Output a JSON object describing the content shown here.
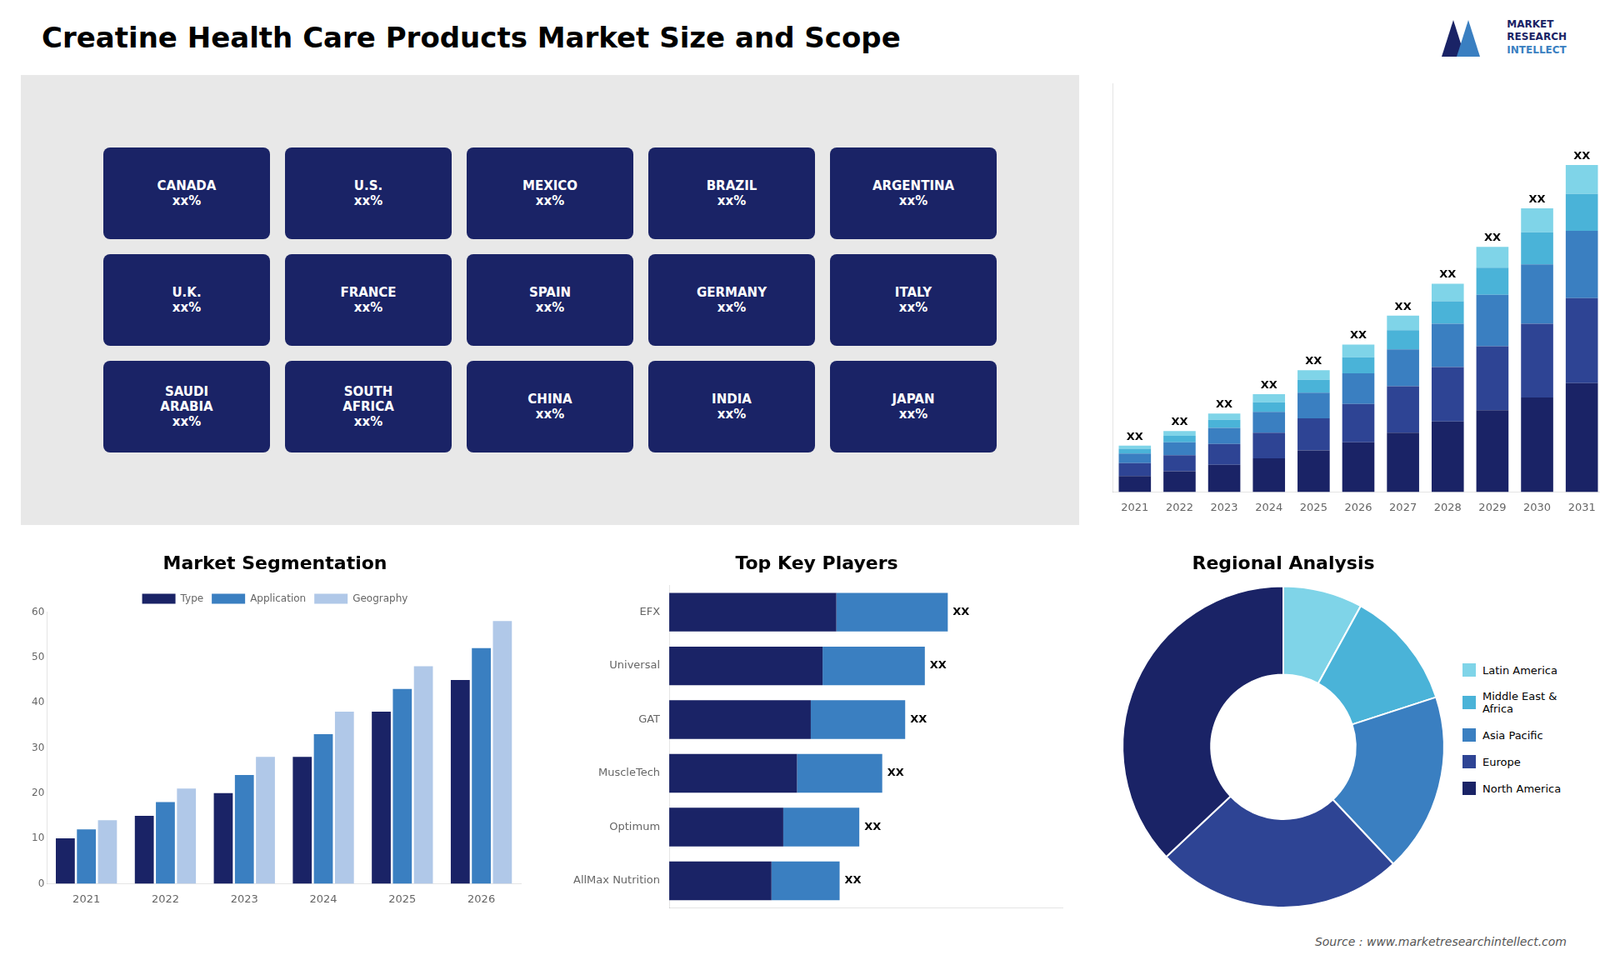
{
  "title": "Creatine Health Care Products Market Size and Scope",
  "annotations": [
    {
      "text": "MARKET",
      "color": "#1a2366"
    },
    {
      "text": "RESEARCH",
      "color": "#1a2366"
    },
    {
      "text": "INTELLECT",
      "color": "#3a7fc1"
    }
  ],
  "source": "Source : www.marketresearchintellect.com",
  "chart_data": [
    {
      "type": "map",
      "annotations": [
        "CANADA\nxx%",
        "U.S.\nxx%",
        "MEXICO\nxx%",
        "BRAZIL\nxx%",
        "ARGENTINA\nxx%",
        "U.K.\nxx%",
        "FRANCE\nxx%",
        "SPAIN\nxx%",
        "GERMANY\nxx%",
        "ITALY\nxx%",
        "SAUDI\nARABIA\nxx%",
        "SOUTH\nAFRICA\nxx%",
        "CHINA\nxx%",
        "INDIA\nxx%",
        "JAPAN\nxx%"
      ]
    },
    {
      "type": "bar",
      "stacked": true,
      "categories": [
        "2021",
        "2022",
        "2023",
        "2024",
        "2025",
        "2026",
        "2027",
        "2028",
        "2029",
        "2030",
        "2031"
      ],
      "series": [
        {
          "color": "#1a2366",
          "values": [
            1.0,
            1.3,
            1.7,
            2.1,
            2.6,
            3.1,
            3.7,
            4.4,
            5.1,
            5.9,
            6.8
          ]
        },
        {
          "color": "#2e4494",
          "values": [
            0.8,
            1.0,
            1.3,
            1.6,
            2.0,
            2.4,
            2.9,
            3.4,
            4.0,
            4.6,
            5.3
          ]
        },
        {
          "color": "#3a7fc1",
          "values": [
            0.6,
            0.8,
            1.0,
            1.3,
            1.6,
            1.9,
            2.3,
            2.7,
            3.2,
            3.7,
            4.2
          ]
        },
        {
          "color": "#4ab3d8",
          "values": [
            0.3,
            0.4,
            0.5,
            0.6,
            0.8,
            1.0,
            1.2,
            1.4,
            1.7,
            2.0,
            2.3
          ]
        },
        {
          "color": "#7fd4e8",
          "values": [
            0.2,
            0.3,
            0.4,
            0.5,
            0.6,
            0.8,
            0.9,
            1.1,
            1.3,
            1.5,
            1.8
          ]
        }
      ],
      "ylim": [
        0,
        25.5
      ],
      "grid": false,
      "tick_labels": "x",
      "annotations": [
        {
          "text": "XX",
          "x": "2021"
        },
        {
          "text": "XX",
          "x": "2022"
        },
        {
          "text": "XX",
          "x": "2023"
        },
        {
          "text": "XX",
          "x": "2024"
        },
        {
          "text": "XX",
          "x": "2025"
        },
        {
          "text": "XX",
          "x": "2026"
        },
        {
          "text": "XX",
          "x": "2027"
        },
        {
          "text": "XX",
          "x": "2028"
        },
        {
          "text": "XX",
          "x": "2029"
        },
        {
          "text": "XX",
          "x": "2030"
        },
        {
          "text": "XX",
          "x": "2031"
        }
      ]
    },
    {
      "type": "bar",
      "title": "Market Segmentation",
      "categories": [
        "2021",
        "2022",
        "2023",
        "2024",
        "2025",
        "2026"
      ],
      "series": [
        {
          "name": "Type",
          "color": "#1a2366",
          "values": [
            10,
            15,
            20,
            28,
            38,
            45
          ]
        },
        {
          "name": "Application",
          "color": "#3a7fc1",
          "values": [
            12,
            18,
            24,
            33,
            43,
            52
          ]
        },
        {
          "name": "Geography",
          "color": "#b0c8e8",
          "values": [
            14,
            21,
            28,
            38,
            48,
            58
          ]
        }
      ],
      "ylim": [
        0,
        60
      ],
      "yticks": [
        0,
        10,
        20,
        30,
        40,
        50,
        60
      ],
      "grid": false,
      "legend": "top"
    },
    {
      "type": "bar",
      "title": "Top Key Players",
      "orientation": "horizontal",
      "stacked": true,
      "categories": [
        "EFX",
        "Universal",
        "GAT",
        "MuscleTech",
        "Optimum",
        "AllMax Nutrition"
      ],
      "series": [
        {
          "color": "#1a2366",
          "values": [
            0.51,
            0.468,
            0.432,
            0.39,
            0.348,
            0.312
          ]
        },
        {
          "color": "#3a7fc1",
          "values": [
            0.34,
            0.312,
            0.288,
            0.26,
            0.232,
            0.208
          ]
        }
      ],
      "xlim": [
        0,
        1.2
      ],
      "grid": false,
      "tick_labels": "y",
      "annotations": [
        {
          "text": "XX",
          "y": "EFX"
        },
        {
          "text": "XX",
          "y": "Universal"
        },
        {
          "text": "XX",
          "y": "GAT"
        },
        {
          "text": "XX",
          "y": "MuscleTech"
        },
        {
          "text": "XX",
          "y": "Optimum"
        },
        {
          "text": "XX",
          "y": "AllMax Nutrition"
        }
      ]
    },
    {
      "type": "doughnut",
      "title": "Regional Analysis",
      "categories": [
        "Latin America",
        "Middle East &\nAfrica",
        "Asia Pacific",
        "Europe",
        "North America"
      ],
      "values": [
        8,
        12,
        18,
        25,
        37
      ],
      "colors": [
        "#7fd4e8",
        "#4ab3d8",
        "#3a7fc1",
        "#2e4494",
        "#1a2366"
      ],
      "legend": "right"
    }
  ]
}
